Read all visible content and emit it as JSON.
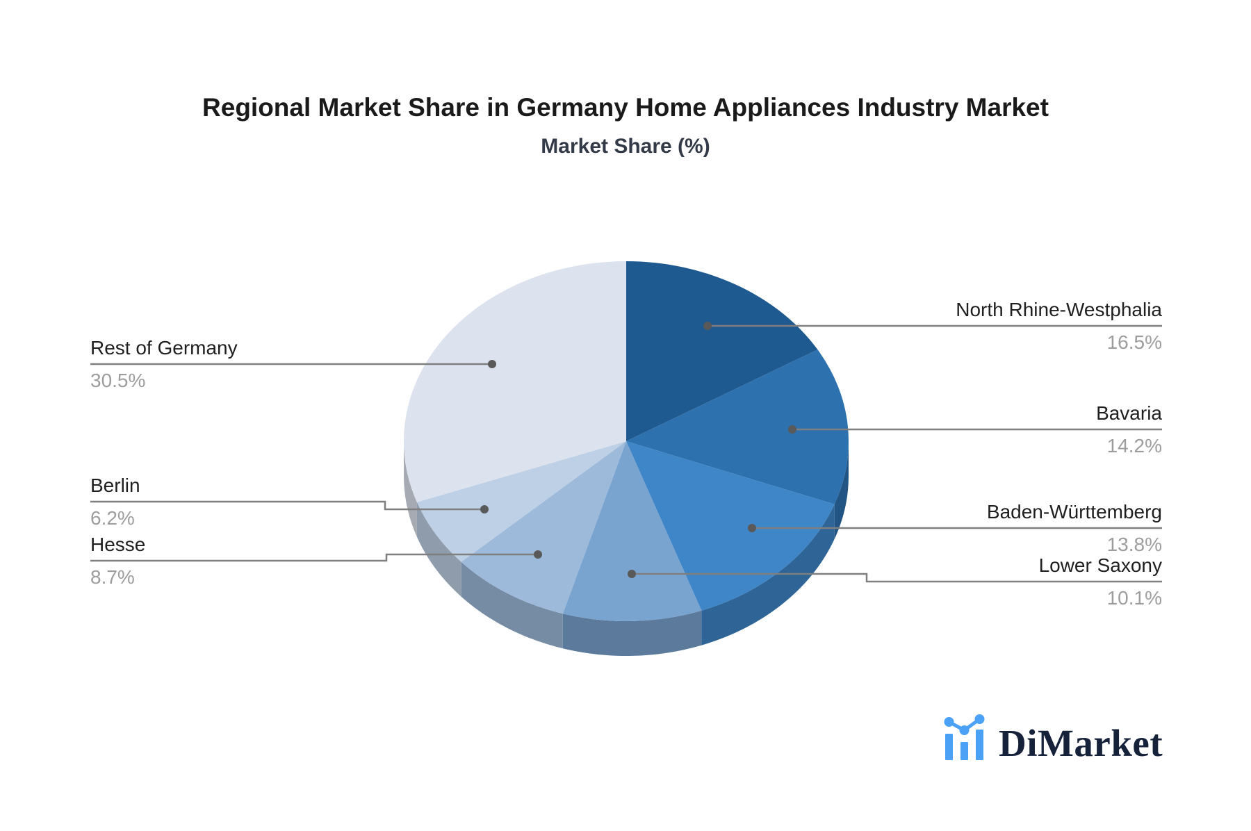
{
  "header": {
    "title": "Regional Market Share in Germany Home Appliances Industry Market",
    "subtitle": "Market Share (%)"
  },
  "chart_data": {
    "type": "pie",
    "title": "Regional Market Share in Germany Home Appliances Industry Market",
    "subtitle": "Market Share (%)",
    "unit": "%",
    "style": "3d-pie",
    "start_angle_deg": -90,
    "direction": "clockwise",
    "legend_position": "callout-labels",
    "segments": [
      {
        "label": "North Rhine-Westphalia",
        "value": 16.5,
        "display": "16.5%",
        "color": "#1e5990",
        "label_side": "right"
      },
      {
        "label": "Bavaria",
        "value": 14.2,
        "display": "14.2%",
        "color": "#2d71ae",
        "label_side": "right"
      },
      {
        "label": "Baden-Württemberg",
        "value": 13.8,
        "display": "13.8%",
        "color": "#3f86c8",
        "label_side": "right"
      },
      {
        "label": "Lower Saxony",
        "value": 10.1,
        "display": "10.1%",
        "color": "#7aa4d0",
        "label_side": "right"
      },
      {
        "label": "Hesse",
        "value": 8.7,
        "display": "8.7%",
        "color": "#9dbadb",
        "label_side": "left"
      },
      {
        "label": "Berlin",
        "value": 6.2,
        "display": "6.2%",
        "color": "#bed0e5",
        "label_side": "left"
      },
      {
        "label": "Rest of Germany",
        "value": 30.5,
        "display": "30.5%",
        "color": "#dce3ee",
        "label_side": "left"
      }
    ],
    "callout_colors": {
      "line": "#7f7f7f",
      "dot": "#595959",
      "label_text": "#1f1f1f",
      "value_text": "#9d9d9d"
    }
  },
  "logo": {
    "brand": "DiMarket",
    "icon": "bar-line-chart-icon",
    "icon_color": "#4aa1f6",
    "text_color": "#16213a"
  }
}
